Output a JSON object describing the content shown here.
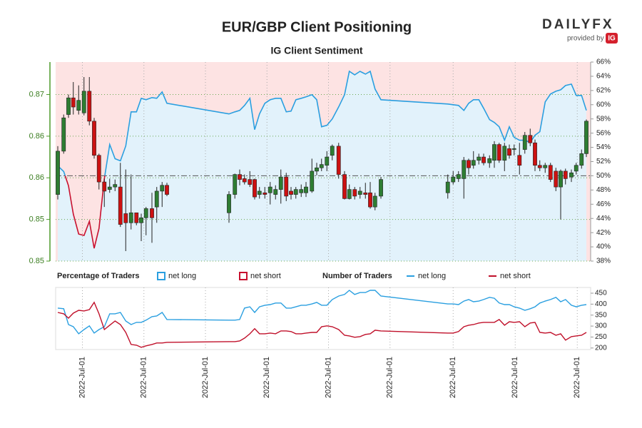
{
  "brand": {
    "name": "DAILYFX",
    "provided_by": "provided by",
    "badge": "IG"
  },
  "chart_data": [
    {
      "type": "candlestick",
      "title": "EUR/GBP Client Positioning",
      "subtitle": "IG Client Sentiment",
      "up_color": "#2e7d32",
      "down_color": "#cc1111",
      "grid": true,
      "x": [
        0.4,
        1.5,
        2.4,
        3.3,
        4.3,
        5.3,
        6.3,
        7.2,
        8.1,
        9.1,
        10.1,
        11.1,
        12.1,
        13.1,
        14.1,
        15.1,
        16,
        16.9,
        18,
        18.9,
        19.9,
        20.8,
        32.4,
        33.5,
        34.4,
        35.3,
        36.3,
        37.2,
        38.1,
        39.1,
        40.1,
        41.1,
        42.1,
        43.1,
        44,
        44.9,
        45.9,
        46.8,
        47.9,
        48.8,
        49.7,
        50.7,
        51.7,
        52.9,
        54,
        54.9,
        55.9,
        56.9,
        57.9,
        58.8,
        59.7,
        60.8,
        73.3,
        74.3,
        75.3,
        76.3,
        77.2,
        78.1,
        79.1,
        80,
        81.1,
        82,
        82.9,
        83.9,
        84.8,
        85.7,
        86.7,
        87.7,
        88.7,
        89.6,
        90.5,
        91.5,
        92.5,
        93.5,
        94.4,
        95.3,
        96.4,
        97.3,
        98.3,
        99.2
      ],
      "open": [
        0.858,
        0.8632,
        0.8676,
        0.8696,
        0.8681,
        0.8678,
        0.8704,
        0.8668,
        0.8627,
        0.8595,
        0.8586,
        0.8589,
        0.8589,
        0.8557,
        0.8546,
        0.8558,
        0.8546,
        0.8552,
        0.8563,
        0.8565,
        0.8584,
        0.8591,
        0.8558,
        0.858,
        0.8604,
        0.8599,
        0.8598,
        0.8598,
        0.858,
        0.8582,
        0.8582,
        0.858,
        0.8586,
        0.8601,
        0.8584,
        0.858,
        0.8582,
        0.8582,
        0.8584,
        0.8608,
        0.8612,
        0.8615,
        0.8627,
        0.8638,
        0.8604,
        0.8575,
        0.8586,
        0.858,
        0.8582,
        0.8582,
        0.8565,
        0.8578,
        0.8582,
        0.8595,
        0.8599,
        0.8599,
        0.8621,
        0.8615,
        0.8621,
        0.8625,
        0.8618,
        0.8621,
        0.864,
        0.8621,
        0.8635,
        0.8634,
        0.8627,
        0.8634,
        0.8651,
        0.8642,
        0.8615,
        0.8612,
        0.8615,
        0.8608,
        0.8589,
        0.8608,
        0.8601,
        0.8608,
        0.8615,
        0.8629
      ],
      "high": [
        0.8638,
        0.8676,
        0.87,
        0.8715,
        0.8711,
        0.8721,
        0.8721,
        0.8672,
        0.8629,
        0.8599,
        0.8599,
        0.8598,
        0.8618,
        0.861,
        0.8604,
        0.8558,
        0.8557,
        0.8565,
        0.8582,
        0.8589,
        0.8595,
        0.8594,
        0.8584,
        0.8605,
        0.861,
        0.8604,
        0.8608,
        0.8599,
        0.8589,
        0.8589,
        0.8595,
        0.8591,
        0.861,
        0.8606,
        0.8589,
        0.8589,
        0.8592,
        0.8595,
        0.8623,
        0.8618,
        0.8623,
        0.8632,
        0.864,
        0.8642,
        0.8608,
        0.8592,
        0.8589,
        0.8589,
        0.8594,
        0.8595,
        0.8582,
        0.8601,
        0.8604,
        0.8608,
        0.8608,
        0.8625,
        0.8623,
        0.8632,
        0.8629,
        0.8629,
        0.8627,
        0.8644,
        0.8642,
        0.8642,
        0.864,
        0.864,
        0.8642,
        0.8655,
        0.8659,
        0.8646,
        0.8621,
        0.8618,
        0.8618,
        0.8612,
        0.861,
        0.8611,
        0.861,
        0.8618,
        0.8634,
        0.867
      ],
      "low": [
        0.8574,
        0.8629,
        0.8672,
        0.8676,
        0.8676,
        0.8675,
        0.8663,
        0.8623,
        0.8586,
        0.8565,
        0.8582,
        0.8584,
        0.8541,
        0.8512,
        0.8538,
        0.8543,
        0.8524,
        0.8531,
        0.8522,
        0.8546,
        0.8565,
        0.8578,
        0.8546,
        0.8575,
        0.8591,
        0.8592,
        0.8589,
        0.8574,
        0.8575,
        0.8575,
        0.8568,
        0.8574,
        0.8569,
        0.8572,
        0.8574,
        0.8575,
        0.8577,
        0.8577,
        0.8582,
        0.8603,
        0.8608,
        0.8608,
        0.8621,
        0.8599,
        0.8574,
        0.8574,
        0.8574,
        0.8575,
        0.8575,
        0.8563,
        0.8561,
        0.8575,
        0.8575,
        0.8592,
        0.8595,
        0.8575,
        0.8604,
        0.8611,
        0.8616,
        0.8615,
        0.8612,
        0.8612,
        0.8618,
        0.8608,
        0.8623,
        0.8627,
        0.8604,
        0.8629,
        0.8638,
        0.8608,
        0.8608,
        0.8606,
        0.8595,
        0.8584,
        0.855,
        0.8592,
        0.8595,
        0.8604,
        0.8611,
        0.8625
      ],
      "close": [
        0.8632,
        0.8672,
        0.8696,
        0.8685,
        0.8693,
        0.8704,
        0.8668,
        0.8627,
        0.8595,
        0.8584,
        0.8589,
        0.8592,
        0.8544,
        0.8546,
        0.8558,
        0.8546,
        0.8552,
        0.8563,
        0.8552,
        0.8584,
        0.8591,
        0.858,
        0.858,
        0.8604,
        0.8598,
        0.8595,
        0.8592,
        0.8577,
        0.8584,
        0.858,
        0.8589,
        0.8586,
        0.8601,
        0.8578,
        0.858,
        0.8586,
        0.8586,
        0.8589,
        0.8608,
        0.8612,
        0.8616,
        0.8625,
        0.8638,
        0.8604,
        0.8575,
        0.8586,
        0.8578,
        0.8584,
        0.858,
        0.8565,
        0.8578,
        0.8598,
        0.8595,
        0.8601,
        0.8604,
        0.8621,
        0.8612,
        0.8621,
        0.8625,
        0.8618,
        0.8623,
        0.864,
        0.8621,
        0.8638,
        0.8627,
        0.8635,
        0.8615,
        0.8651,
        0.8642,
        0.8615,
        0.8612,
        0.8615,
        0.8598,
        0.8589,
        0.8608,
        0.8599,
        0.8606,
        0.8615,
        0.8629,
        0.8668
      ],
      "series": [
        {
          "axis": "y2",
          "values": [
            51.4,
            50.6,
            48.6,
            44.6,
            41.8,
            41.6,
            43.6,
            39.8,
            42.6,
            49.6,
            54.4,
            52.4,
            52.1,
            54.2,
            59.0,
            59.0,
            60.9,
            60.7,
            61.0,
            60.9,
            61.8,
            60.2,
            58.7,
            59.0,
            59.2,
            59.9,
            60.9,
            56.5,
            58.7,
            60.2,
            60.7,
            60.9,
            60.9,
            59.0,
            59.1,
            60.7,
            60.9,
            61.1,
            61.4,
            60.7,
            56.9,
            57.1,
            58.0,
            59.7,
            61.4,
            64.7,
            64.2,
            64.7,
            64.3,
            64.7,
            62.2,
            60.7,
            60.1,
            60.0,
            59.9,
            59.2,
            60.2,
            60.7,
            60.7,
            59.5,
            57.9,
            57.5,
            56.9,
            55.0,
            56.9,
            55.4,
            55.0,
            55.0,
            54.7,
            55.7,
            56.2,
            60.4,
            61.5,
            61.9,
            62.1,
            62.7,
            62.9,
            61.3,
            61.3,
            59.2
          ]
        }
      ],
      "legend": {
        "title": "Percentage of Traders",
        "items": [
          {
            "name": "net long",
            "color": "#2a9fe0",
            "fill": "#e2f2fb"
          },
          {
            "name": "net short",
            "color": "#c8102e",
            "fill": "#fde3e3"
          }
        ]
      },
      "y2_reference": 50,
      "xlim": [
        0,
        100
      ],
      "ylim": [
        0.85,
        0.8739
      ],
      "yticks": [
        0.85,
        {
          "value": 0.855,
          "label": "0.85"
        },
        0.86,
        {
          "value": 0.865,
          "label": "0.86"
        },
        0.87
      ],
      "y2lim": [
        38,
        66
      ],
      "y2ticks": [
        {
          "value": 38,
          "label": "38%"
        },
        {
          "value": 40,
          "label": "40%"
        },
        {
          "value": 42,
          "label": "42%"
        },
        {
          "value": 44,
          "label": "44%"
        },
        {
          "value": 46,
          "label": "46%"
        },
        {
          "value": 48,
          "label": "48%"
        },
        {
          "value": 50,
          "label": "50%"
        },
        {
          "value": 52,
          "label": "52%"
        },
        {
          "value": 54,
          "label": "54%"
        },
        {
          "value": 56,
          "label": "56%"
        },
        {
          "value": 58,
          "label": "58%"
        },
        {
          "value": 60,
          "label": "60%"
        },
        {
          "value": 62,
          "label": "62%"
        },
        {
          "value": 64,
          "label": "64%"
        },
        {
          "value": 66,
          "label": "66%"
        }
      ]
    },
    {
      "type": "line",
      "legend_title": "Number of Traders",
      "series": [
        {
          "name": "net long",
          "color": "#2a9fe0",
          "values": [
            382,
            379,
            307,
            297,
            265,
            284,
            301,
            268,
            284,
            297,
            356,
            356,
            362,
            323,
            307,
            317,
            317,
            327,
            343,
            346,
            362,
            330,
            327,
            327,
            330,
            382,
            388,
            362,
            388,
            395,
            398,
            405,
            405,
            382,
            382,
            388,
            395,
            395,
            401,
            408,
            395,
            395,
            421,
            437,
            444,
            463,
            444,
            453,
            453,
            463,
            463,
            437,
            401,
            401,
            398,
            414,
            421,
            411,
            414,
            421,
            431,
            427,
            405,
            398,
            398,
            388,
            382,
            372,
            379,
            388,
            405,
            414,
            421,
            431,
            411,
            421,
            395,
            388,
            395,
            398
          ]
        },
        {
          "name": "net short",
          "color": "#c0102a",
          "values": [
            362,
            356,
            336,
            359,
            372,
            369,
            375,
            408,
            356,
            284,
            304,
            323,
            307,
            271,
            216,
            213,
            203,
            210,
            216,
            223,
            223,
            226,
            229,
            229,
            232,
            245,
            265,
            288,
            265,
            265,
            268,
            265,
            278,
            278,
            275,
            265,
            265,
            268,
            271,
            271,
            297,
            301,
            297,
            284,
            258,
            255,
            249,
            252,
            262,
            265,
            281,
            278,
            268,
            268,
            275,
            297,
            304,
            307,
            314,
            317,
            317,
            317,
            330,
            304,
            320,
            317,
            320,
            297,
            314,
            317,
            271,
            268,
            271,
            258,
            265,
            236,
            252,
            255,
            258,
            271
          ]
        }
      ],
      "xlim": [
        0,
        100
      ],
      "xticks": [
        {
          "value": 5,
          "label": "2022-Jul-01"
        },
        {
          "value": 16.5,
          "label": "2022-Jul-01"
        },
        {
          "value": 28,
          "label": "2022-Jul-01"
        },
        {
          "value": 39.5,
          "label": "2022-Jul-01"
        },
        {
          "value": 51,
          "label": "2022-Jul-01"
        },
        {
          "value": 62.5,
          "label": "2022-Jul-01"
        },
        {
          "value": 74.3,
          "label": "2022-Jul-01"
        },
        {
          "value": 85.9,
          "label": "2022-Jul-01"
        },
        {
          "value": 97.5,
          "label": "2022-Jul-01"
        }
      ],
      "ylim": [
        193,
        476
      ],
      "yticks": [
        200,
        250,
        300,
        350,
        400,
        450
      ]
    }
  ]
}
